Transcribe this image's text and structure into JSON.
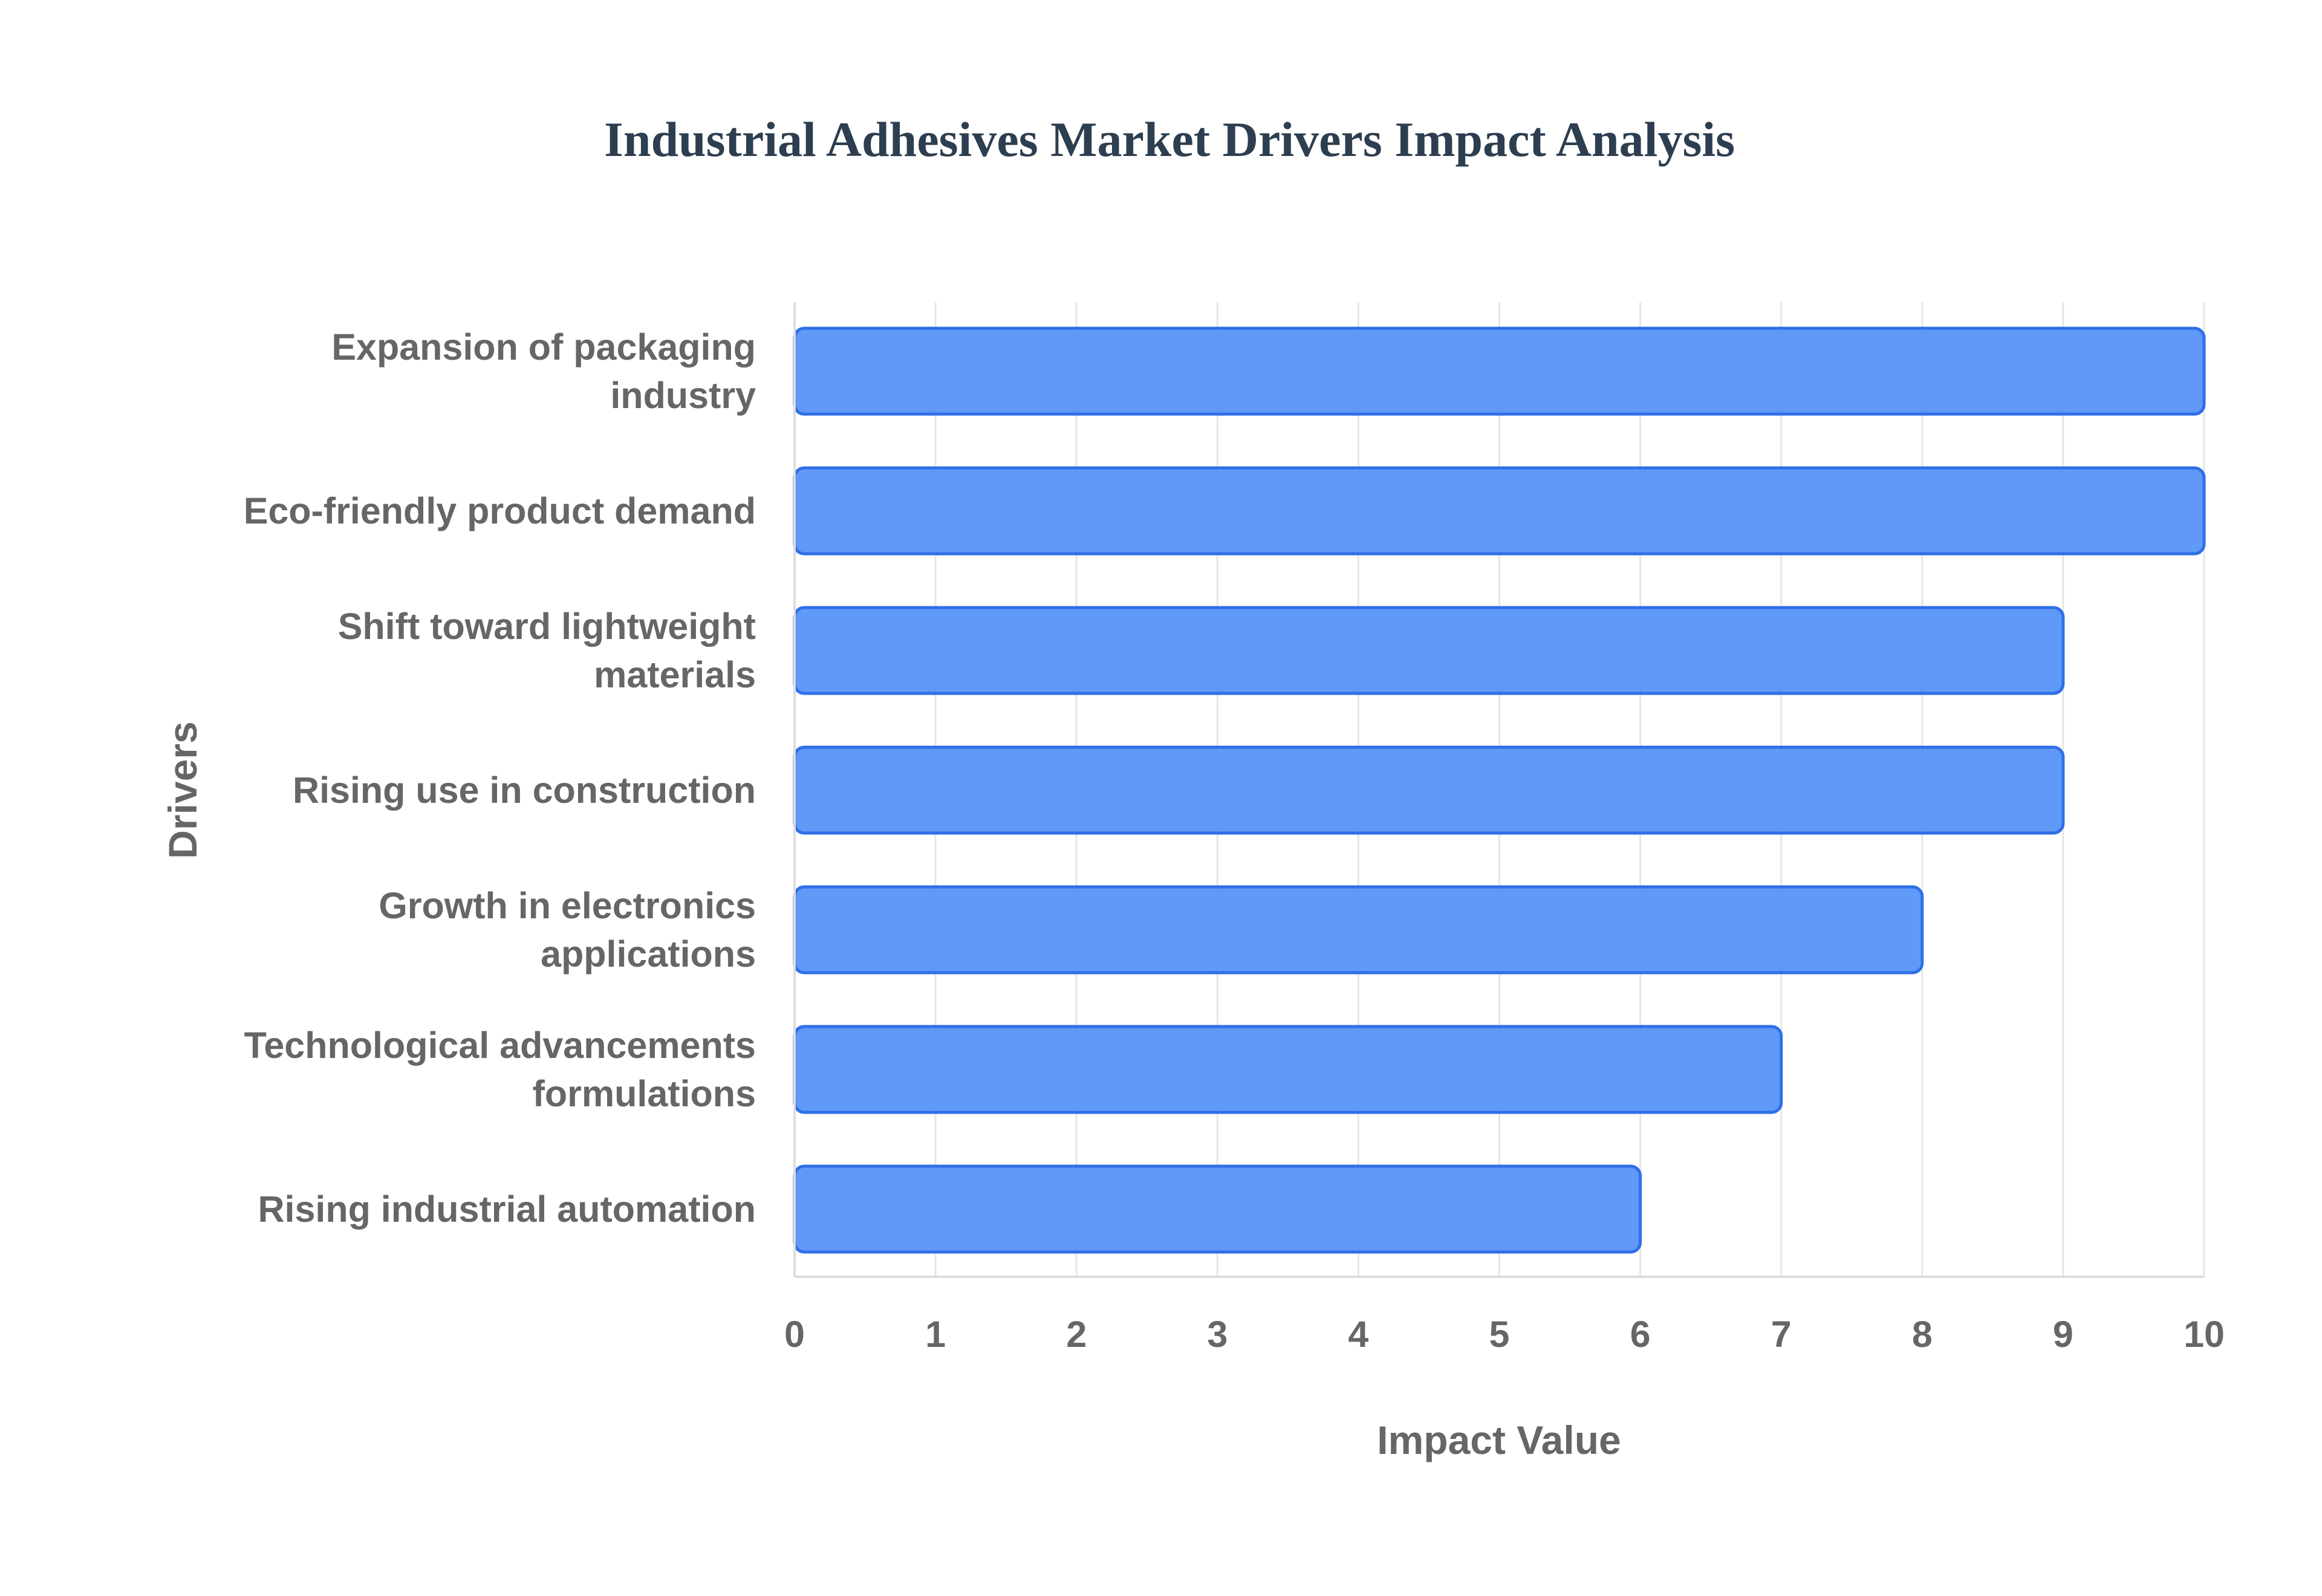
{
  "chart_data": {
    "type": "bar",
    "orientation": "horizontal",
    "title": "Industrial Adhesives Market Drivers Impact Analysis",
    "xlabel": "Impact Value",
    "ylabel": "Drivers",
    "categories": [
      [
        "Expansion of packaging",
        "industry"
      ],
      [
        "Eco-friendly product demand"
      ],
      [
        "Shift toward lightweight",
        "materials"
      ],
      [
        "Rising use in construction"
      ],
      [
        "Growth in electronics",
        "applications"
      ],
      [
        "Technological advancements",
        "formulations"
      ],
      [
        "Rising industrial automation"
      ]
    ],
    "values": [
      10,
      10,
      9,
      9,
      8,
      7,
      6
    ],
    "xlim": [
      0,
      10
    ],
    "xticks": [
      "0",
      "1",
      "2",
      "3",
      "4",
      "5",
      "6",
      "7",
      "8",
      "9",
      "10"
    ],
    "grid": true,
    "legend": "none"
  },
  "colors": {
    "title": "#2c3e50",
    "label": "#666666",
    "bar_fill": "#4f8ef7",
    "bar_stroke": "#2f6fe8",
    "grid": "#e6e6e6",
    "axis": "#dddddd"
  }
}
